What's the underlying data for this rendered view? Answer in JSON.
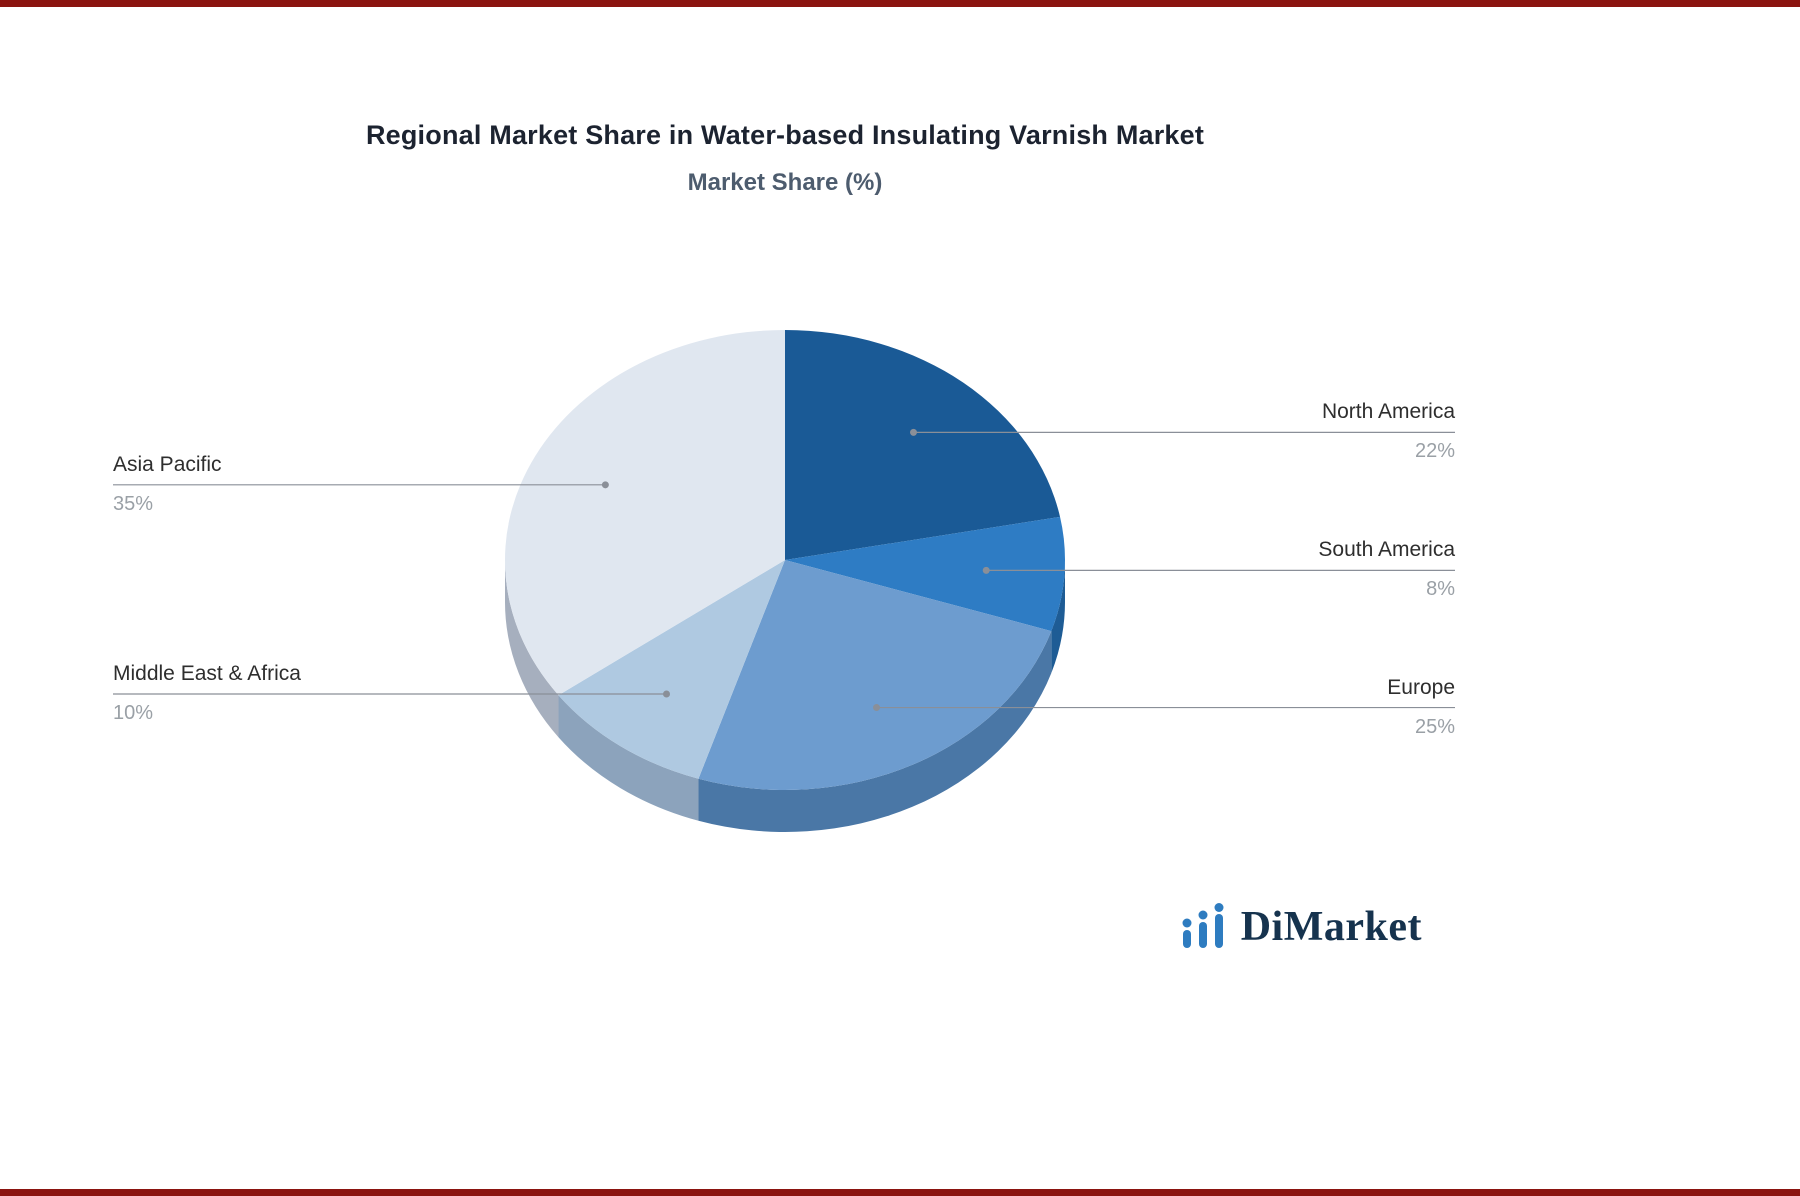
{
  "page": {
    "frame_color": "#8B1410",
    "brand": {
      "name": "DiMarket",
      "name_color": "#16334E",
      "icon": "bar-chart-logo-icon",
      "icon_color": "#2E7CC0"
    }
  },
  "chart_data": {
    "type": "pie",
    "style": "3d",
    "title": "Regional Market Share in Water-based Insulating Varnish Market",
    "subtitle": "Market Share (%)",
    "unit": "%",
    "start_angle_deg": 0,
    "direction": "clockwise",
    "labels": [
      "North America",
      "South America",
      "Europe",
      "Middle East & Africa",
      "Asia Pacific"
    ],
    "values": [
      22,
      8,
      25,
      10,
      35
    ],
    "colors": [
      "#1A5A96",
      "#2E7CC4",
      "#6D9CCF",
      "#AFC9E1",
      "#E0E7F0"
    ],
    "side_colors": [
      "#10406E",
      "#1E5C95",
      "#4A77A6",
      "#8CA3BC",
      "#A6AFBE"
    ],
    "label_layout": "leader-lines",
    "label_name_color": "#2e2e2e",
    "label_value_color": "#9aa0a6",
    "leader_line_color": "#8a8f98",
    "legend": "none"
  }
}
